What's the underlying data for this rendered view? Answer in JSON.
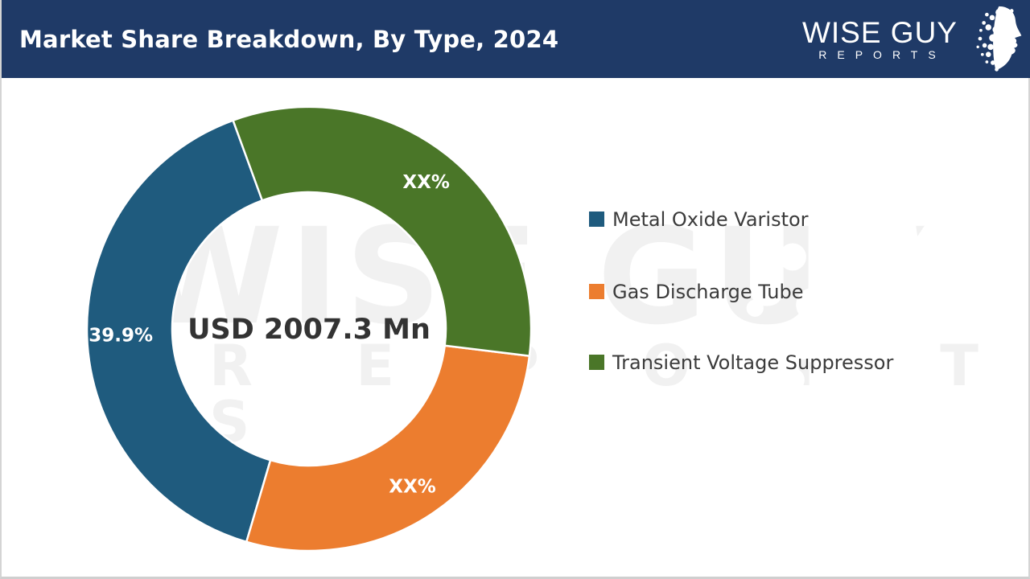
{
  "header": {
    "title": "Market Share Breakdown, By Type, 2024",
    "background_color": "#1f3a67",
    "title_color": "#ffffff",
    "logo": {
      "line1": "WISE GUY",
      "line2": "REPORTS"
    }
  },
  "watermark": {
    "line1": "WISE GUY",
    "line2": "R E P O R T S",
    "color": "#f1f1f1"
  },
  "chart_data": {
    "type": "pie",
    "subtype": "donut",
    "title": "Market Share Breakdown, By Type, 2024",
    "center_label": "USD 2007.3 Mn",
    "center_label_color": "#333333",
    "slice_label_color": "#ffffff",
    "start_angle_deg": 110,
    "direction": "counterclockwise",
    "legend_position": "right",
    "segments": [
      {
        "label": "Metal Oxide Varistor",
        "display_value": "39.9%",
        "value_pct": 39.9,
        "color": "#1f5b7e"
      },
      {
        "label": "Gas Discharge Tube",
        "display_value": "XX%",
        "value_pct": 27.6,
        "color": "#ec7d2f"
      },
      {
        "label": "Transient Voltage Suppressor",
        "display_value": "XX%",
        "value_pct": 32.5,
        "color": "#4a7628"
      }
    ]
  },
  "legend": {
    "text_color": "#3b3b3b",
    "items": [
      {
        "label": "Metal Oxide Varistor",
        "color": "#1f5b7e"
      },
      {
        "label": "Gas Discharge Tube",
        "color": "#ec7d2f"
      },
      {
        "label": "Transient Voltage Suppressor",
        "color": "#4a7628"
      }
    ]
  }
}
